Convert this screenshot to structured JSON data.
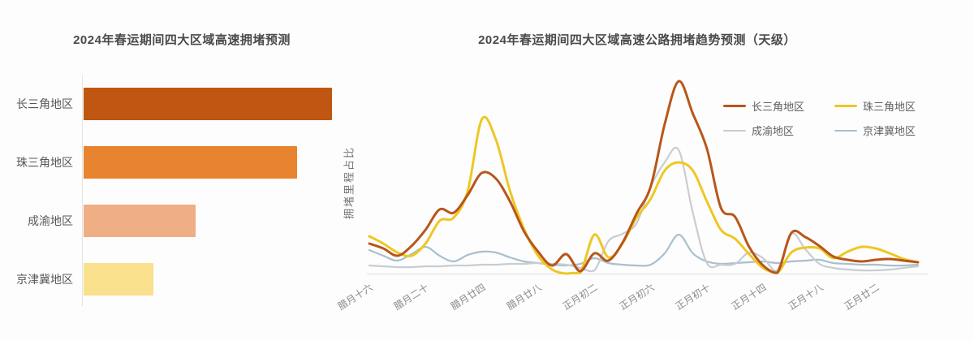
{
  "page": {
    "background": "#fdfdfd"
  },
  "chart_data": [
    {
      "type": "bar",
      "orientation": "horizontal",
      "title": "2024年春运期间四大区域高速拥堵预测",
      "categories": [
        "长三角地区",
        "珠三角地区",
        "成渝地区",
        "京津冀地区"
      ],
      "values": [
        100,
        86,
        45,
        28
      ],
      "value_note": "relative congestion level, max bar = 100; no numeric axis shown in figure",
      "colors": [
        "#bf5612",
        "#e8832f",
        "#f0ae84",
        "#f9e08c"
      ],
      "grid": false
    },
    {
      "type": "line",
      "title": "2024年春运期间四大区域高速公路拥堵趋势预测（天级）",
      "ylabel": "拥堵里程占比",
      "xlabel": "",
      "x_tick_labels": [
        "腊月十六",
        "腊月二十",
        "腊月廿四",
        "腊月廿八",
        "正月初二",
        "正月初六",
        "正月初十",
        "正月十四",
        "正月十八",
        "正月廿二"
      ],
      "days_per_tick": 4,
      "grid": false,
      "legend_position": "inside-top-right",
      "y_unit": "congestion-mileage share index (no numeric y ticks shown), daily points",
      "series": [
        {
          "name": "京津冀地区",
          "color": "#a9bfcd",
          "width": 2.2,
          "values": [
            29,
            22,
            16,
            24,
            33,
            22,
            15,
            23,
            27,
            26,
            20,
            15,
            13,
            11,
            10,
            12,
            19,
            13,
            11,
            10,
            11,
            25,
            48,
            25,
            15,
            12,
            13,
            14,
            15,
            13,
            15,
            16,
            17,
            13,
            12,
            11,
            11,
            10,
            10,
            11
          ]
        },
        {
          "name": "成渝地区",
          "color": "#c8cdd2",
          "width": 2.2,
          "values": [
            10,
            9,
            8,
            8,
            9,
            9,
            10,
            10,
            11,
            11,
            12,
            12,
            13,
            12,
            11,
            7,
            4,
            40,
            49,
            62,
            107,
            137,
            152,
            75,
            13,
            11,
            12,
            26,
            19,
            4,
            49,
            30,
            12,
            7,
            5,
            4,
            4,
            5,
            7,
            9
          ]
        },
        {
          "name": "珠三角地区",
          "color": "#eec724",
          "width": 3,
          "values": [
            46,
            37,
            26,
            22,
            37,
            65,
            69,
            102,
            190,
            165,
            102,
            55,
            22,
            5,
            0,
            1,
            48,
            20,
            37,
            69,
            92,
            127,
            137,
            127,
            89,
            54,
            43,
            24,
            7,
            1,
            26,
            32,
            31,
            19,
            27,
            33,
            31,
            25,
            18,
            14
          ]
        },
        {
          "name": "长三角地区",
          "color": "#b8561a",
          "width": 3,
          "values": [
            37,
            31,
            22,
            34,
            54,
            79,
            75,
            97,
            124,
            117,
            89,
            52,
            27,
            10,
            24,
            3,
            25,
            16,
            38,
            74,
            107,
            184,
            237,
            197,
            154,
            81,
            70,
            33,
            10,
            1,
            50,
            45,
            34,
            21,
            17,
            15,
            17,
            18,
            16,
            14
          ]
        }
      ],
      "legend_order": [
        "长三角地区",
        "珠三角地区",
        "成渝地区",
        "京津冀地区"
      ]
    }
  ]
}
